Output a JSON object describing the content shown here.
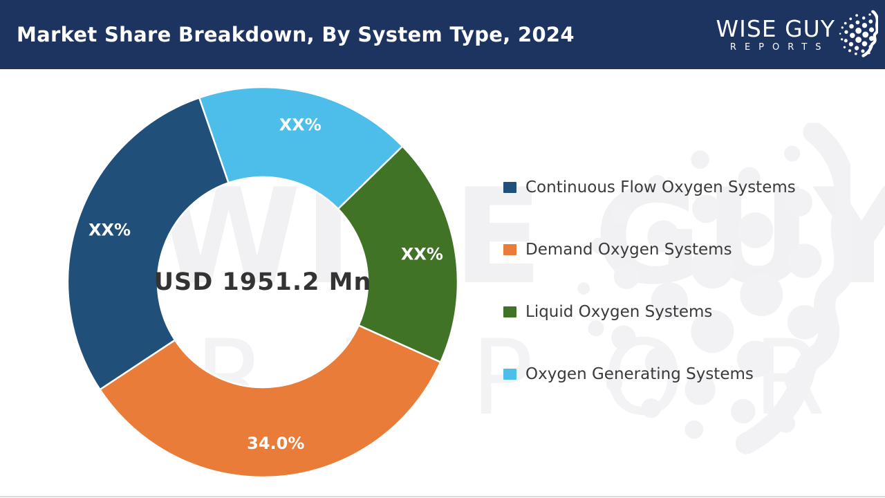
{
  "header": {
    "title": "Market Share Breakdown, By System Type, 2024",
    "logo": {
      "wordmark": "WISE GUY",
      "subtitle": "REPORTS"
    }
  },
  "watermark": {
    "line1": "WISE GUY",
    "line2": "REPORTS"
  },
  "chart_data": {
    "type": "pie",
    "subtype": "donut",
    "title": "Market Share Breakdown, By System Type, 2024",
    "center_label": "USD 1951.2 Mn",
    "legend_position": "right",
    "start_angle_deg": 109,
    "direction": "counterclockwise",
    "segments": [
      {
        "label": "Continuous Flow Oxygen Systems",
        "color": "#204F79",
        "pct": 29,
        "pct_shown": "XX%"
      },
      {
        "label": "Demand Oxygen Systems",
        "color": "#E87C38",
        "pct": 34,
        "pct_shown": "34.0%"
      },
      {
        "label": "Liquid Oxygen Systems",
        "color": "#417327",
        "pct": 19,
        "pct_shown": "XX%"
      },
      {
        "label": "Oxygen Generating Systems",
        "color": "#4DBDE9",
        "pct": 18,
        "pct_shown": "XX%"
      }
    ],
    "colors": {
      "header_bg": "#1E3460",
      "separator": "#FFFFFF",
      "center_text": "#333333",
      "legend_text": "#3A3A3A"
    }
  }
}
